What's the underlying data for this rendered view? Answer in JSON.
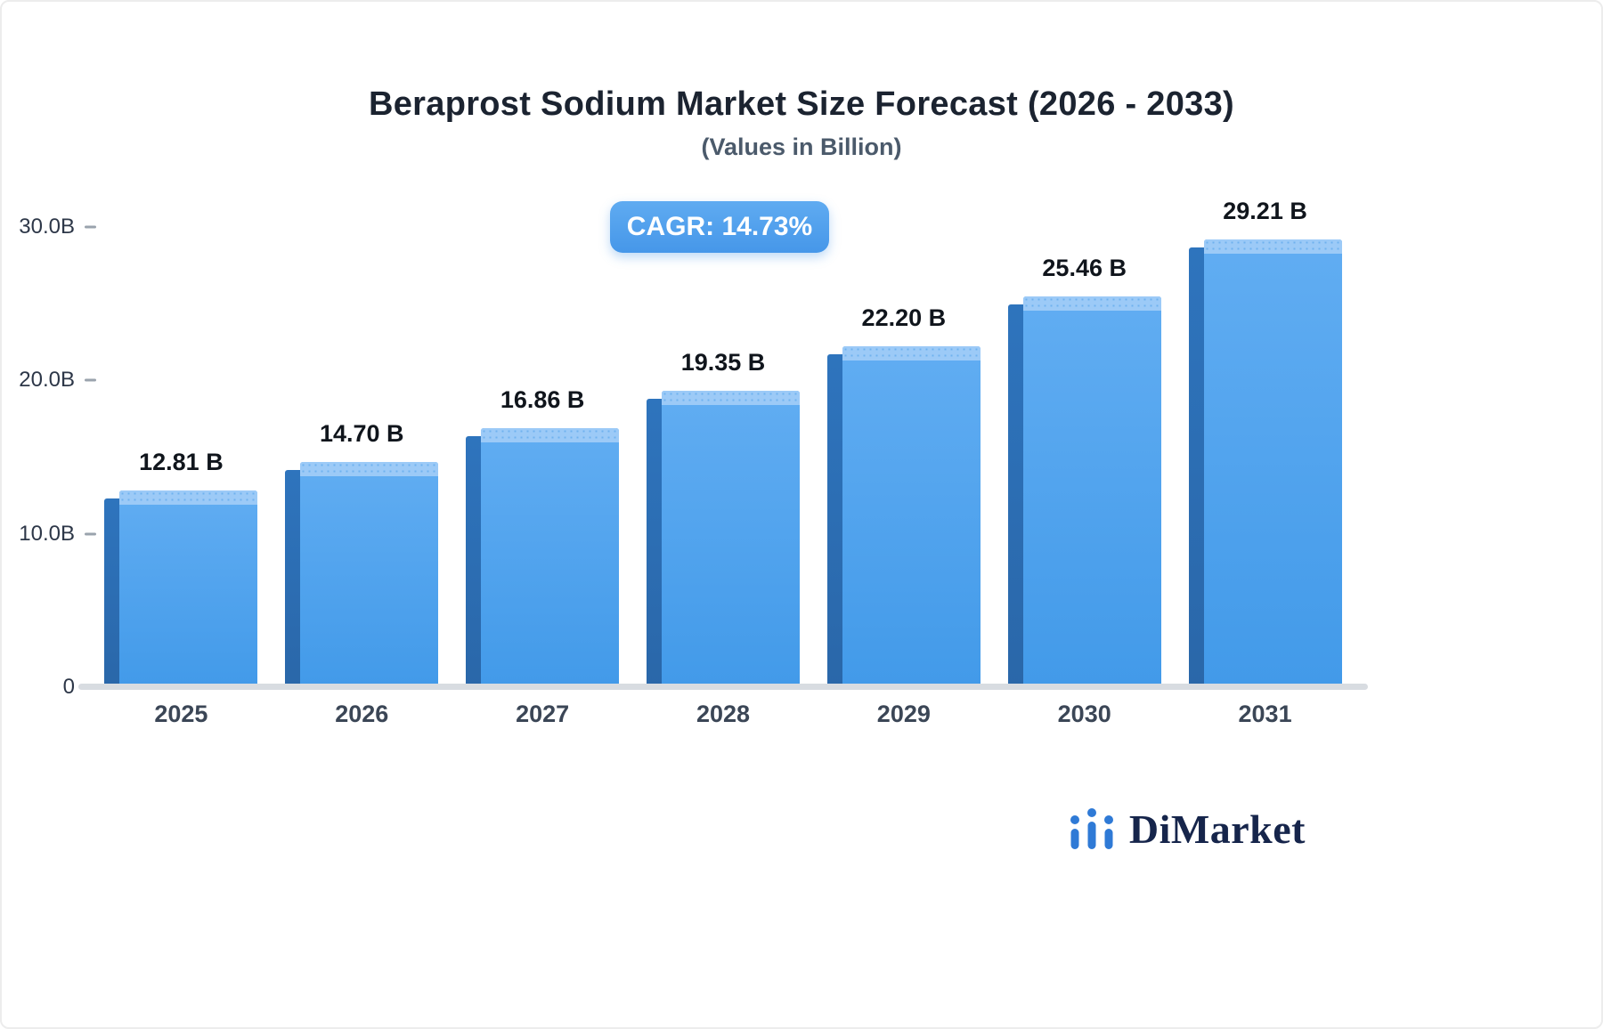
{
  "header": {
    "title": "Beraprost Sodium Market Size Forecast (2026 - 2033)",
    "subtitle": "(Values in Billion)"
  },
  "badge": {
    "label": "CAGR: 14.73%",
    "background_color": "#4DA0F0",
    "text_color": "#FFFFFF"
  },
  "chart_data": {
    "type": "bar",
    "title": "Beraprost Sodium Market Size Forecast (2026 - 2033)",
    "subtitle": "(Values in Billion)",
    "categories": [
      "2025",
      "2026",
      "2027",
      "2028",
      "2029",
      "2030",
      "2031"
    ],
    "values": [
      12.81,
      14.7,
      16.86,
      19.35,
      22.2,
      25.46,
      29.21
    ],
    "value_labels": [
      "12.81 B",
      "14.70 B",
      "16.86 B",
      "19.35 B",
      "22.20 B",
      "25.46 B",
      "29.21 B"
    ],
    "xlabel": "",
    "ylabel": "",
    "ylim": [
      0,
      30
    ],
    "y_ticks": [
      {
        "label": "0",
        "value": 0
      },
      {
        "label": "10.0B",
        "value": 10
      },
      {
        "label": "20.0B",
        "value": 20
      },
      {
        "label": "30.0B",
        "value": 30
      }
    ],
    "grid": false,
    "legend": "none",
    "bar_body_color": "#4AA0EF",
    "bar_side_color": "#2E74BD",
    "bar_cap_color": "#9CCAF7"
  },
  "logo": {
    "text": "DiMarket",
    "icon": "bar-chart-dots-icon",
    "icon_color": "#2F7AD6",
    "text_color": "#16254B"
  }
}
